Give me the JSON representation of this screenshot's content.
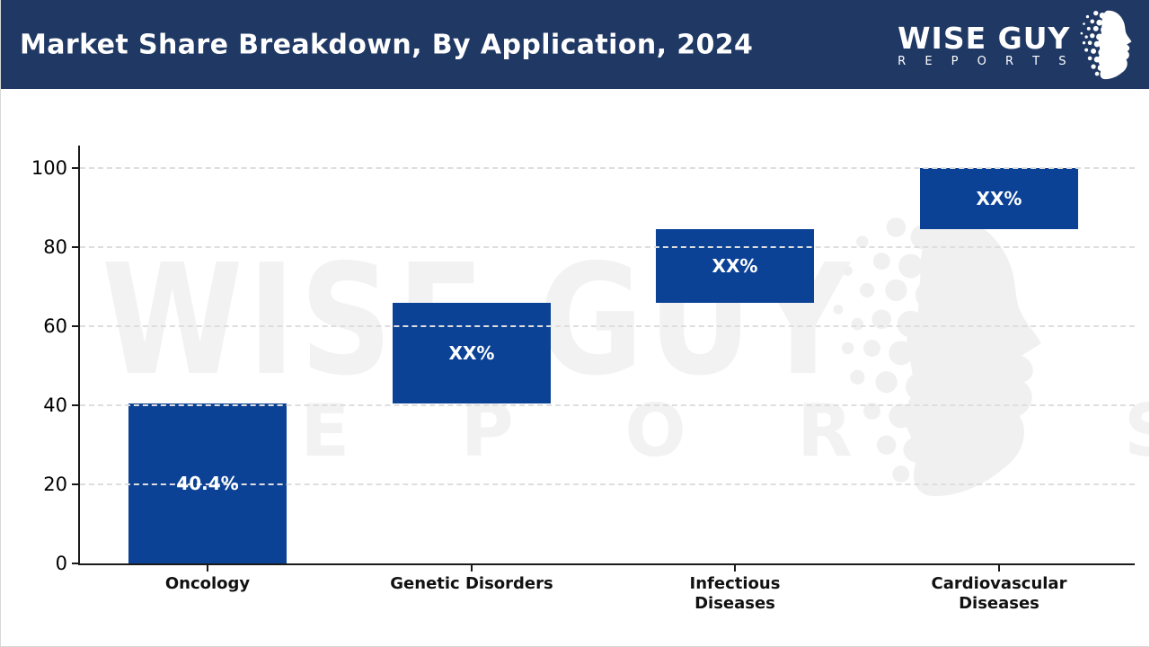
{
  "header": {
    "title": "Market Share Breakdown, By Application, 2024",
    "logo": {
      "line1": "WISE GUY",
      "line2": "R E P O R T S"
    }
  },
  "watermark": {
    "line1": "WISE GUY",
    "line2": "R E P O R T S"
  },
  "chart_data": {
    "type": "bar",
    "subtype": "waterfall",
    "title": "Market Share Breakdown, By Application, 2024",
    "categories": [
      "Oncology",
      "Genetic Disorders",
      "Infectious Diseases",
      "Cardiovascular Diseases"
    ],
    "category_tick_lines": [
      [
        "Oncology"
      ],
      [
        "Genetic Disorders"
      ],
      [
        "Infectious",
        "Diseases"
      ],
      [
        "Cardiovascular",
        "Diseases"
      ]
    ],
    "bars": [
      {
        "category": "Oncology",
        "label": "40.4%",
        "from": 0,
        "to": 40.4
      },
      {
        "category": "Genetic Disorders",
        "label": "XX%",
        "from": 40.4,
        "to": 65.9
      },
      {
        "category": "Infectious Diseases",
        "label": "XX%",
        "from": 65.9,
        "to": 84.5
      },
      {
        "category": "Cardiovascular Diseases",
        "label": "XX%",
        "from": 84.5,
        "to": 100
      }
    ],
    "y_ticks": [
      0,
      20,
      40,
      60,
      80,
      100
    ],
    "ylim": [
      0,
      105.7
    ],
    "xlabel": "",
    "ylabel": "",
    "grid": "horizontal-dashed",
    "legend": "none",
    "bar_color": "#0b4296"
  },
  "colors": {
    "header_bg": "#1f3864",
    "bar": "#0b4296",
    "grid": "#dedede",
    "axis": "#1a1a1a",
    "watermark": "#f2f2f2",
    "title_text": "#ffffff"
  }
}
